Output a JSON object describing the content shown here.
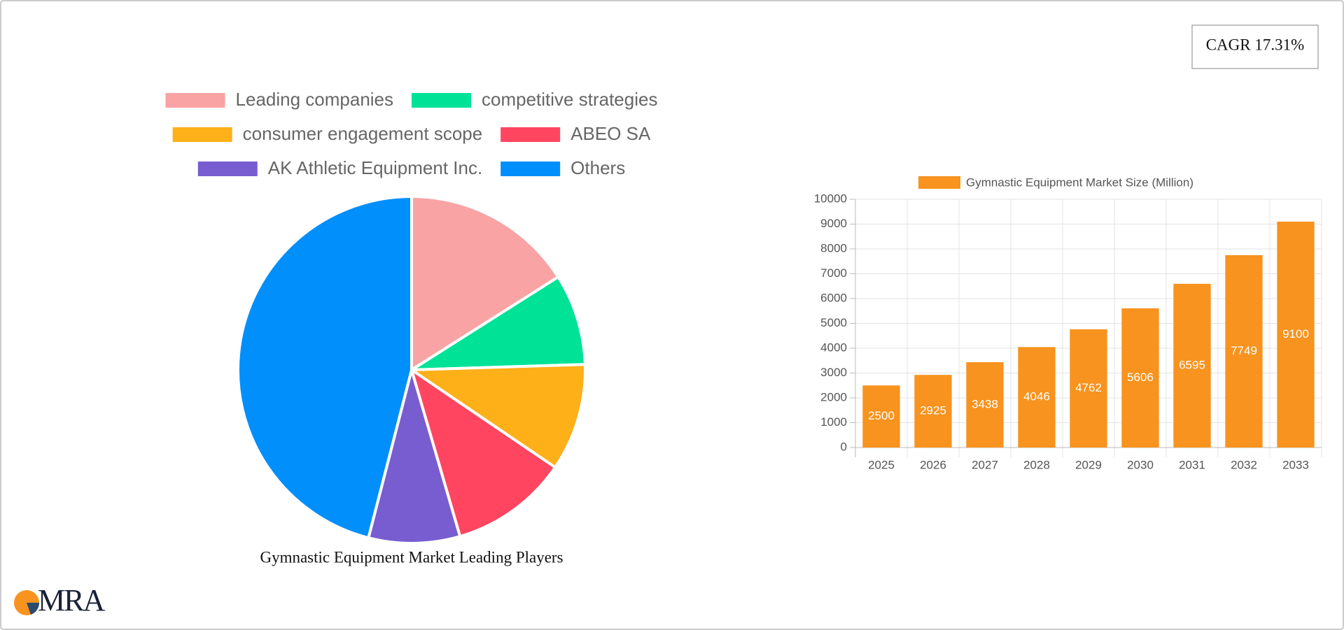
{
  "cagr": "CAGR 17.31%",
  "logo": "MRA",
  "chart_data": [
    {
      "type": "pie",
      "title": "Gymnastic Equipment Market Leading Players",
      "labels": [
        "Leading companies",
        "competitive strategies",
        "consumer engagement scope",
        "ABEO SA",
        "AK Athletic Equipment Inc.",
        "Others"
      ],
      "values": [
        16,
        8.5,
        10,
        11,
        8.5,
        46
      ],
      "colors": [
        "#f9a3a4",
        "#00e396",
        "#feb019",
        "#ff4560",
        "#775dd0",
        "#008ffb"
      ]
    },
    {
      "type": "bar",
      "categories": [
        "2025",
        "2026",
        "2027",
        "2028",
        "2029",
        "2030",
        "2031",
        "2032",
        "2033"
      ],
      "series": [
        {
          "name": "Gymnastic Equipment Market Size (Million)",
          "color": "#f7931e",
          "values": [
            2500,
            2925,
            3438,
            4046,
            4762,
            5606,
            6595,
            7749,
            9100
          ]
        }
      ],
      "ylim": [
        0,
        10000
      ],
      "yticks": [
        0,
        1000,
        2000,
        3000,
        4000,
        5000,
        6000,
        7000,
        8000,
        9000,
        10000
      ],
      "grid": true
    }
  ]
}
